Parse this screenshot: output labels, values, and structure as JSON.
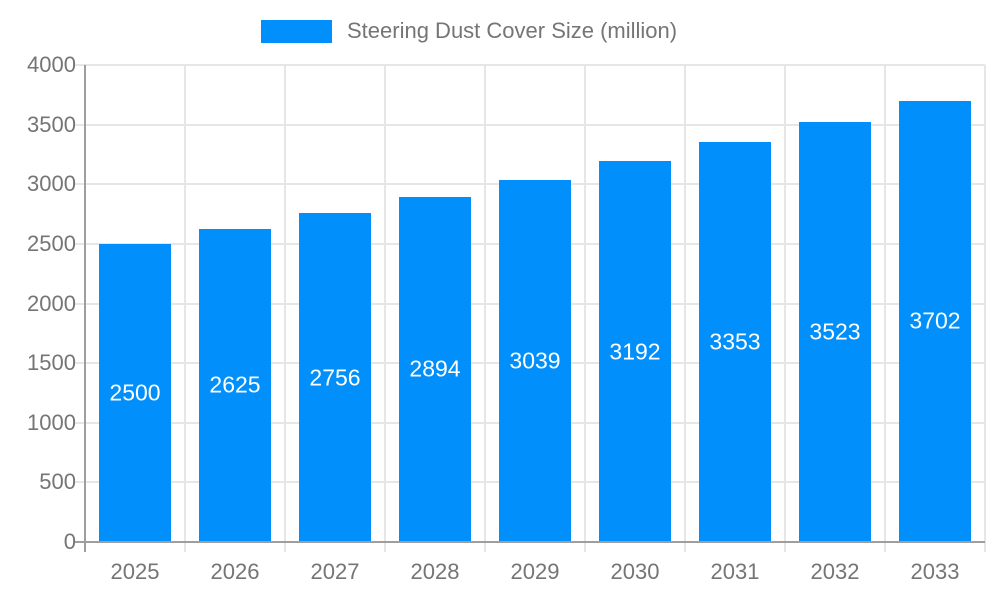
{
  "chart_data": {
    "type": "bar",
    "title": "",
    "legend": {
      "label": "Steering Dust Cover Size (million)",
      "position": "top"
    },
    "categories": [
      "2025",
      "2026",
      "2027",
      "2028",
      "2029",
      "2030",
      "2031",
      "2032",
      "2033"
    ],
    "values": [
      2500,
      2625,
      2756,
      2894,
      3039,
      3192,
      3353,
      3523,
      3702
    ],
    "bar_labels": [
      "2500",
      "2625",
      "2756",
      "2894",
      "3039",
      "3192",
      "3353",
      "3523",
      "3702"
    ],
    "xlabel": "",
    "ylabel": "",
    "ylim": [
      0,
      4000
    ],
    "ytick_step": 500,
    "ytick_labels": [
      "0",
      "500",
      "1000",
      "1500",
      "2000",
      "2500",
      "3000",
      "3500",
      "4000"
    ],
    "grid": true,
    "colors": {
      "bar": "#008FFB",
      "bar_label_text": "#ffffff",
      "axis_text": "#757575",
      "gridline": "#e6e6e6",
      "axis_line": "#9e9e9e",
      "background": "#ffffff"
    }
  }
}
